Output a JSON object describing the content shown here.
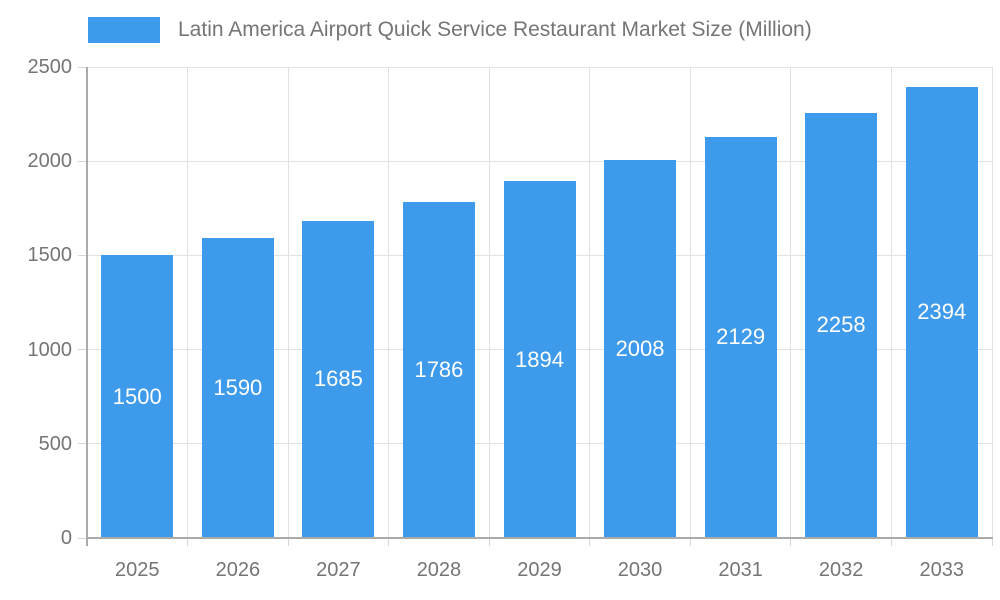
{
  "chart_data": {
    "type": "bar",
    "title": "Latin America Airport Quick Service Restaurant Market Size (Million)",
    "categories": [
      "2025",
      "2026",
      "2027",
      "2028",
      "2029",
      "2030",
      "2031",
      "2032",
      "2033"
    ],
    "values": [
      1500,
      1590,
      1685,
      1786,
      1894,
      2008,
      2129,
      2258,
      2394
    ],
    "xlabel": "",
    "ylabel": "",
    "ylim": [
      0,
      2500
    ],
    "yticks": [
      0,
      500,
      1000,
      1500,
      2000,
      2500
    ],
    "grid": true,
    "legend_position": "top-left",
    "value_labels": "inside-center-white",
    "colors": {
      "bar": "#3E9AEB",
      "grid": "#e2e2e2",
      "axis": "#ababab",
      "tick": "#d6d6d6",
      "axis_text": "#757575",
      "value_label": "#ffffff",
      "background": "#ffffff"
    }
  }
}
